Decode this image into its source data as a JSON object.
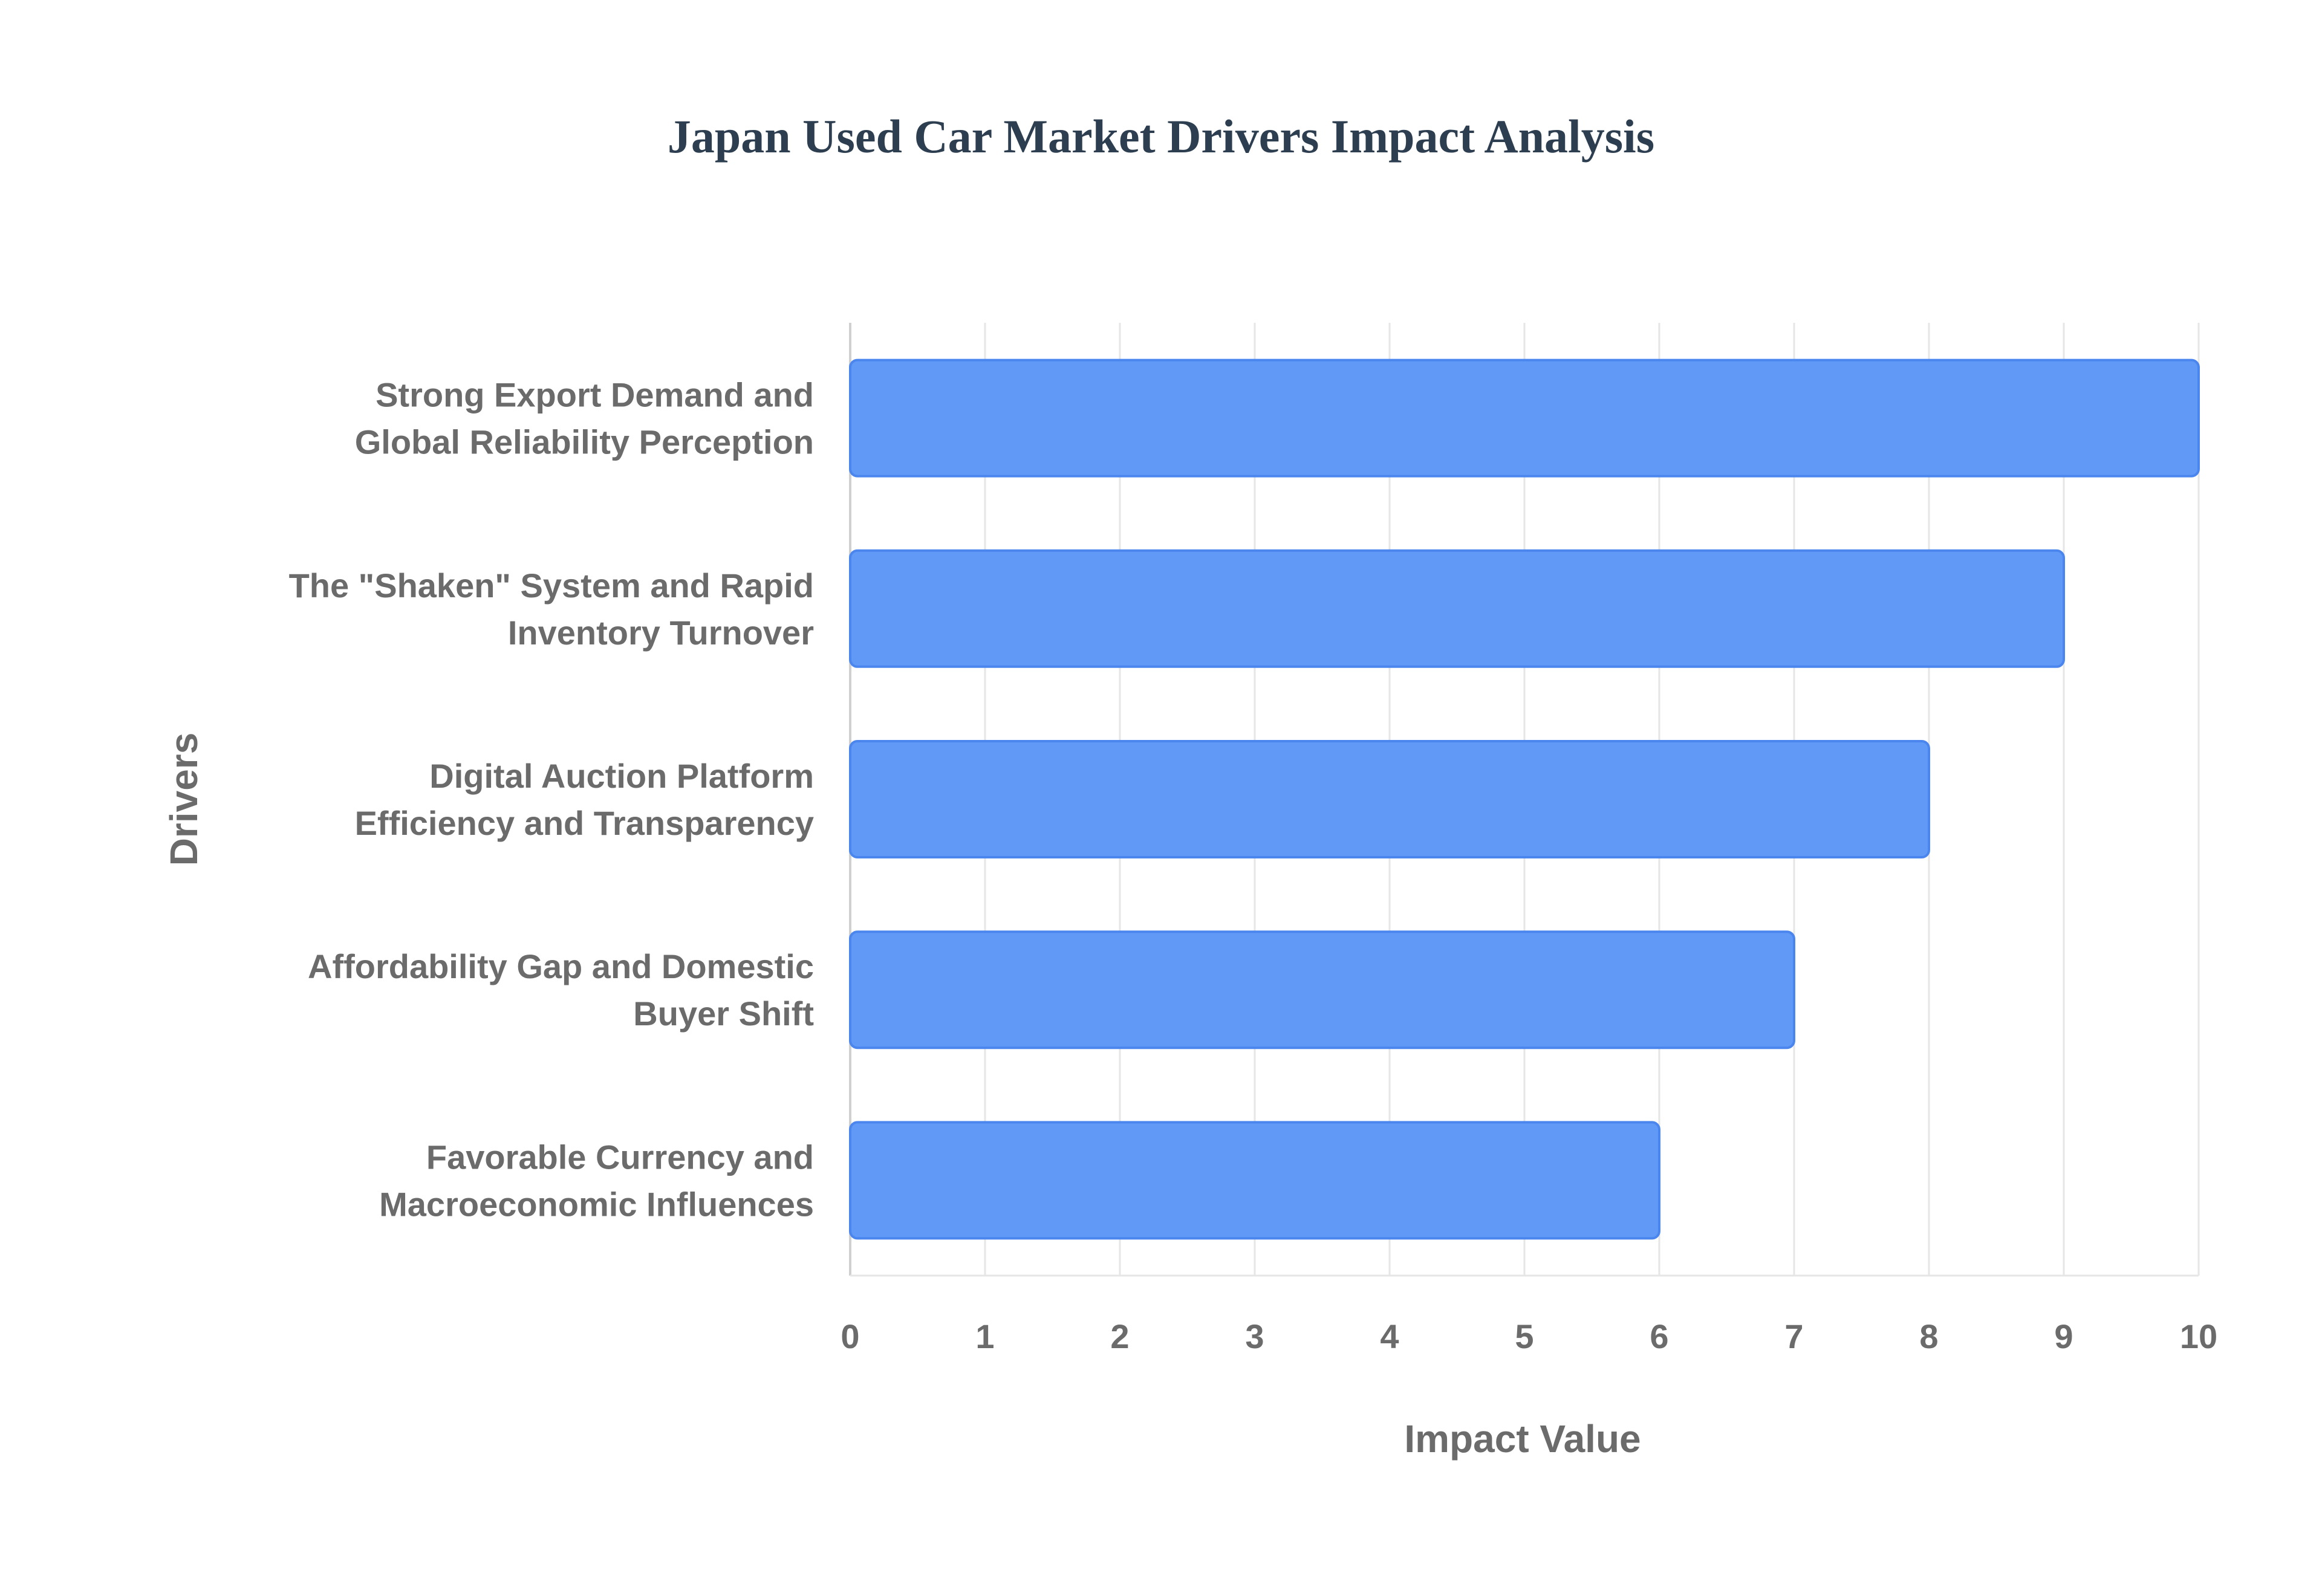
{
  "chart_data": {
    "type": "bar",
    "orientation": "horizontal",
    "title": "Japan Used Car Market Drivers Impact Analysis",
    "xlabel": "Impact Value",
    "ylabel": "Drivers",
    "categories": [
      [
        "Strong Export Demand and",
        "Global Reliability Perception"
      ],
      [
        "The \"Shaken\" System and Rapid",
        "Inventory Turnover"
      ],
      [
        "Digital Auction Platform",
        "Efficiency and Transparency"
      ],
      [
        "Affordability Gap and Domestic",
        "Buyer Shift"
      ],
      [
        "Favorable Currency and",
        "Macroeconomic Influences"
      ]
    ],
    "values": [
      10,
      9,
      8,
      7,
      6
    ],
    "xlim": [
      0,
      10
    ],
    "xticks": [
      "0",
      "1",
      "2",
      "3",
      "4",
      "5",
      "6",
      "7",
      "8",
      "9",
      "10"
    ],
    "grid": true,
    "legend": "none",
    "colors": {
      "bar_fill": "#6199f6",
      "bar_stroke": "#4a86ee",
      "title": "#2c3e50",
      "text": "#6b6b6b",
      "grid": "#e6e6e6",
      "axis": "#d0d0d0"
    }
  }
}
